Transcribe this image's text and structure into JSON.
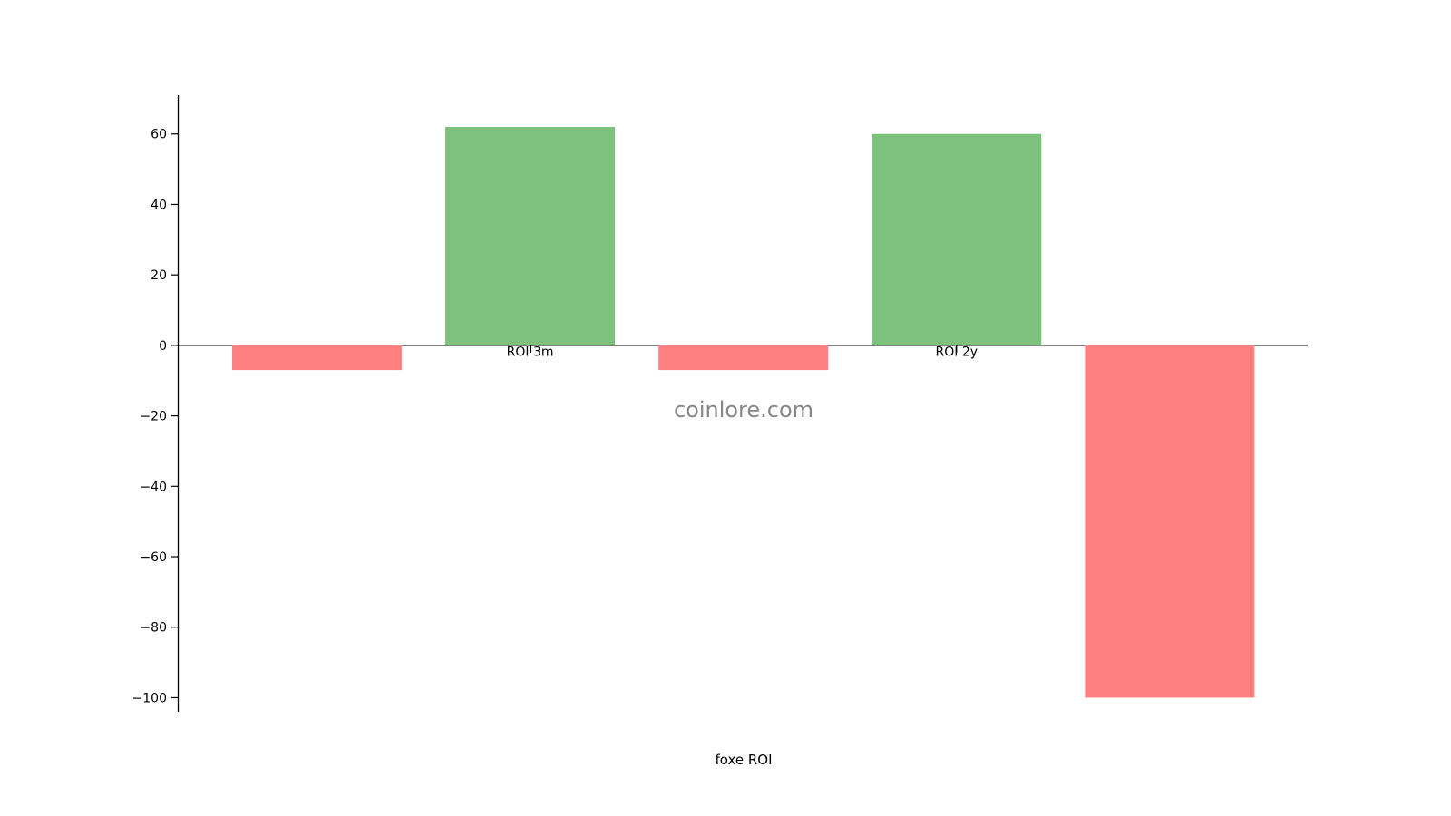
{
  "chart_data": {
    "type": "bar",
    "title": "",
    "xlabel": "foxe ROI",
    "ylabel": "",
    "watermark": "coinlore.com",
    "categories": [
      "",
      "ROI 3m",
      "",
      "ROI 2y",
      ""
    ],
    "values": [
      -7,
      62,
      -7,
      60,
      -100
    ],
    "series_name": "foxe ROI",
    "y_axis": {
      "tick_values": [
        60,
        40,
        20,
        0,
        -20,
        -40,
        -60,
        -80,
        -100
      ],
      "tick_labels": [
        "60",
        "40",
        "20",
        "0",
        "−20",
        "−40",
        "−60",
        "−80",
        "−100"
      ]
    },
    "ylim": [
      -104,
      71
    ],
    "grid": false,
    "legend": "none",
    "colors": {
      "positive_bar": "#7cc17c",
      "negative_bar": "#ff8080",
      "axis": "#000000",
      "tick_text": "#000000",
      "watermark_text": "#878787"
    }
  }
}
